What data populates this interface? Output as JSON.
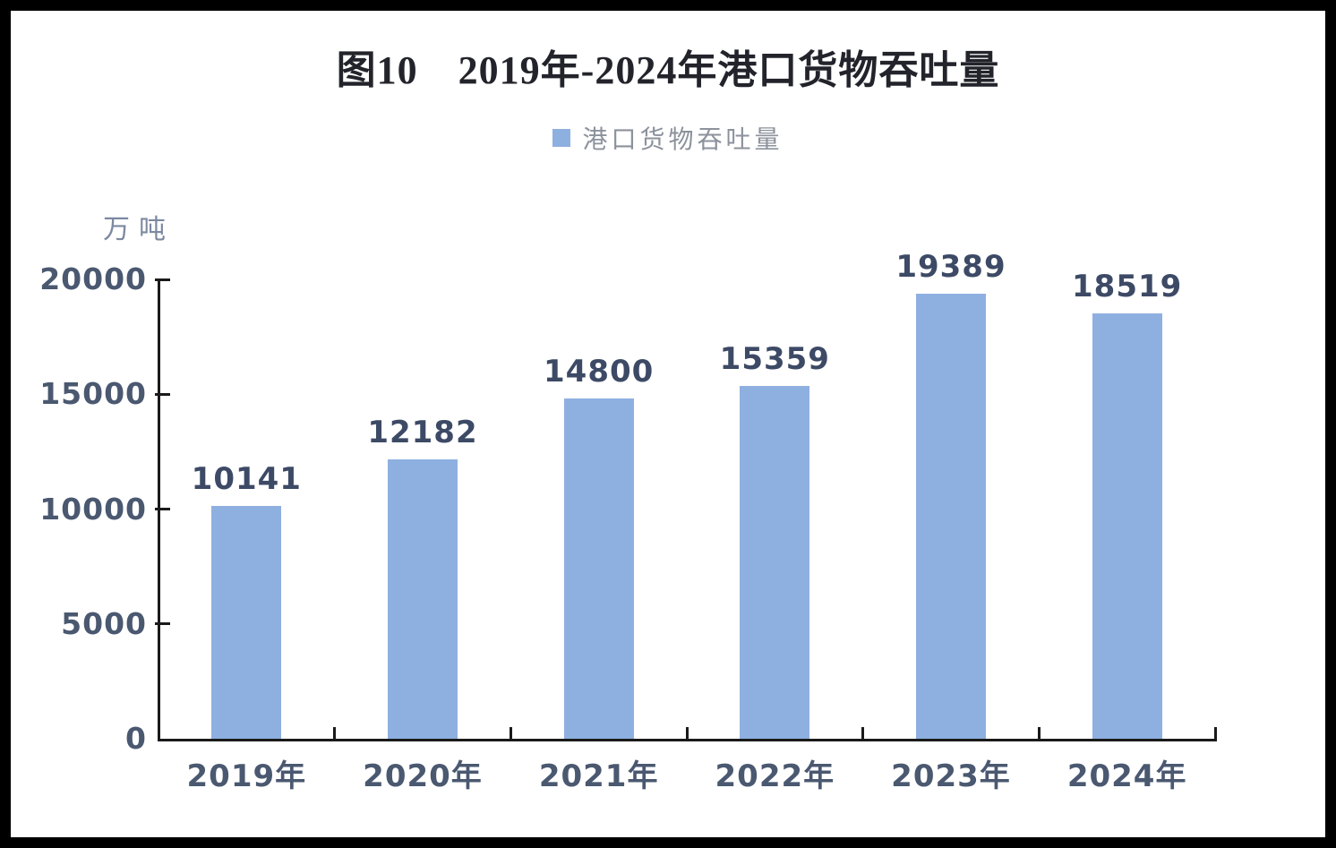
{
  "frame": {
    "background": "#ffffff",
    "border_color": "#000000"
  },
  "chart_data": {
    "type": "bar",
    "title": "图10　2019年-2024年港口货物吞吐量",
    "legend": "港口货物吞吐量",
    "ylabel": "万吨",
    "categories": [
      "2019年",
      "2020年",
      "2021年",
      "2022年",
      "2023年",
      "2024年"
    ],
    "values": [
      10141,
      12182,
      14800,
      15359,
      19389,
      18519
    ],
    "yticks": [
      0,
      5000,
      10000,
      15000,
      20000
    ],
    "ylim": [
      0,
      20000
    ],
    "grid": false,
    "legend_position": "top",
    "colors": {
      "bar": "#8EB0E0",
      "axis": "#1a1a1a",
      "tick_label": "#4A5870",
      "data_label": "#3D4A66",
      "legend_text": "#8C929C",
      "unit_label": "#7C89A0",
      "title": "#23242B"
    }
  }
}
